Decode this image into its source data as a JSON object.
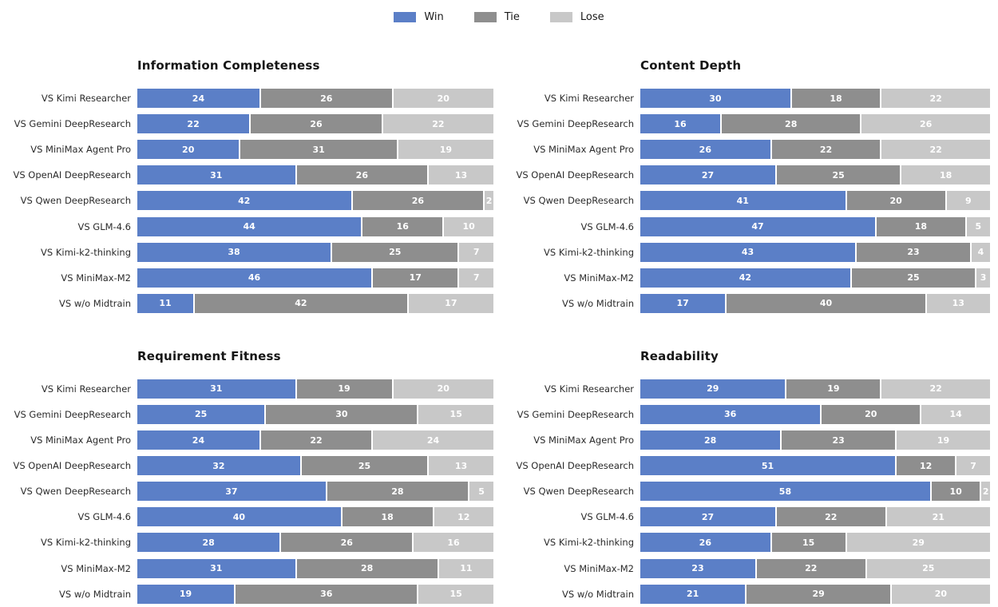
{
  "colors": {
    "win": "#5b7fc7",
    "tie": "#8e8e8e",
    "lose": "#c8c8c8"
  },
  "legend": {
    "items": [
      {
        "key": "win",
        "label": "Win"
      },
      {
        "key": "tie",
        "label": "Tie"
      },
      {
        "key": "lose",
        "label": "Lose"
      }
    ]
  },
  "chart_data": [
    {
      "type": "bar",
      "orientation": "horizontal",
      "stacked": true,
      "title": "Information Completeness",
      "total": 70,
      "categories": [
        "VS Kimi Researcher",
        "VS Gemini DeepResearch",
        "VS MiniMax Agent Pro",
        "VS OpenAI DeepResearch",
        "VS Qwen DeepResearch",
        "VS GLM-4.6",
        "VS Kimi-k2-thinking",
        "VS MiniMax-M2",
        "VS w/o Midtrain"
      ],
      "series": [
        {
          "name": "Win",
          "values": [
            24,
            22,
            20,
            31,
            42,
            44,
            38,
            46,
            11
          ]
        },
        {
          "name": "Tie",
          "values": [
            26,
            26,
            31,
            26,
            26,
            16,
            25,
            17,
            42
          ]
        },
        {
          "name": "Lose",
          "values": [
            20,
            22,
            19,
            13,
            2,
            10,
            7,
            7,
            17
          ]
        }
      ]
    },
    {
      "type": "bar",
      "orientation": "horizontal",
      "stacked": true,
      "title": "Content Depth",
      "total": 70,
      "categories": [
        "VS Kimi Researcher",
        "VS Gemini DeepResearch",
        "VS MiniMax Agent Pro",
        "VS OpenAI DeepResearch",
        "VS Qwen DeepResearch",
        "VS GLM-4.6",
        "VS Kimi-k2-thinking",
        "VS MiniMax-M2",
        "VS w/o Midtrain"
      ],
      "series": [
        {
          "name": "Win",
          "values": [
            30,
            16,
            26,
            27,
            41,
            47,
            43,
            42,
            17
          ]
        },
        {
          "name": "Tie",
          "values": [
            18,
            28,
            22,
            25,
            20,
            18,
            23,
            25,
            40
          ]
        },
        {
          "name": "Lose",
          "values": [
            22,
            26,
            22,
            18,
            9,
            5,
            4,
            3,
            13
          ]
        }
      ]
    },
    {
      "type": "bar",
      "orientation": "horizontal",
      "stacked": true,
      "title": "Requirement Fitness",
      "total": 70,
      "categories": [
        "VS Kimi Researcher",
        "VS Gemini DeepResearch",
        "VS MiniMax Agent Pro",
        "VS OpenAI DeepResearch",
        "VS Qwen DeepResearch",
        "VS GLM-4.6",
        "VS Kimi-k2-thinking",
        "VS MiniMax-M2",
        "VS w/o Midtrain"
      ],
      "series": [
        {
          "name": "Win",
          "values": [
            31,
            25,
            24,
            32,
            37,
            40,
            28,
            31,
            19
          ]
        },
        {
          "name": "Tie",
          "values": [
            19,
            30,
            22,
            25,
            28,
            18,
            26,
            28,
            36
          ]
        },
        {
          "name": "Lose",
          "values": [
            20,
            15,
            24,
            13,
            5,
            12,
            16,
            11,
            15
          ]
        }
      ]
    },
    {
      "type": "bar",
      "orientation": "horizontal",
      "stacked": true,
      "title": "Readability",
      "total": 70,
      "categories": [
        "VS Kimi Researcher",
        "VS Gemini DeepResearch",
        "VS MiniMax Agent Pro",
        "VS OpenAI DeepResearch",
        "VS Qwen DeepResearch",
        "VS GLM-4.6",
        "VS Kimi-k2-thinking",
        "VS MiniMax-M2",
        "VS w/o Midtrain"
      ],
      "series": [
        {
          "name": "Win",
          "values": [
            29,
            36,
            28,
            51,
            58,
            27,
            26,
            23,
            21
          ]
        },
        {
          "name": "Tie",
          "values": [
            19,
            20,
            23,
            12,
            10,
            22,
            15,
            22,
            29
          ]
        },
        {
          "name": "Lose",
          "values": [
            22,
            14,
            19,
            7,
            2,
            21,
            29,
            25,
            20
          ]
        }
      ]
    }
  ]
}
